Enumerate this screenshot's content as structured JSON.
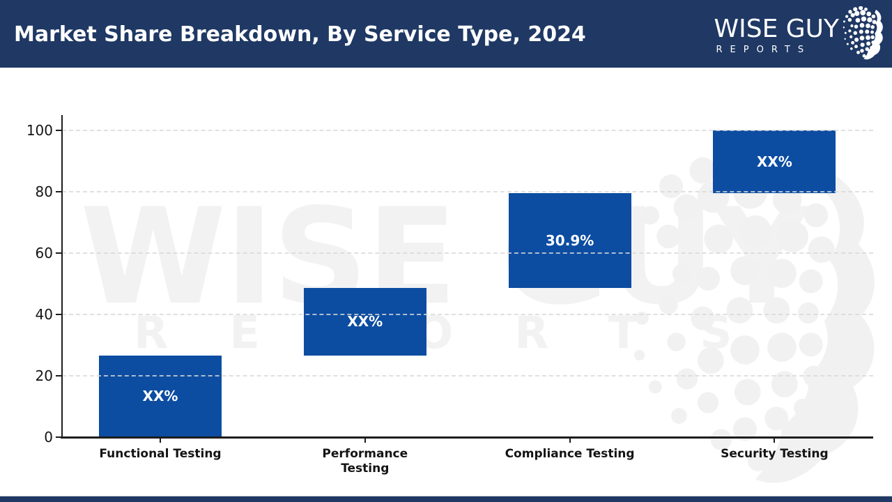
{
  "header": {
    "title": "Market Share Breakdown, By Service Type, 2024",
    "bg_color": "#1f3864",
    "logo": {
      "line1": "WISE GUY",
      "line2": "REPORTS"
    }
  },
  "watermark": {
    "line1": "WISE GUY",
    "line2": "REPORTS"
  },
  "chart_data": {
    "type": "bar",
    "subtype": "waterfall",
    "title": "Market Share Breakdown, By Service Type, 2024",
    "categories": [
      "Functional Testing",
      "Performance Testing",
      "Compliance Testing",
      "Security Testing"
    ],
    "tick_lines": [
      [
        "Functional Testing"
      ],
      [
        "Performance",
        "Testing"
      ],
      [
        "Compliance Testing"
      ],
      [
        "Security Testing"
      ]
    ],
    "series": [
      {
        "name": "Market Share (%)",
        "segments": [
          {
            "category": "Functional Testing",
            "start": 0,
            "end": 26.6,
            "label": "XX%"
          },
          {
            "category": "Performance Testing",
            "start": 26.6,
            "end": 48.5,
            "label": "XX%"
          },
          {
            "category": "Compliance Testing",
            "start": 48.5,
            "end": 79.5,
            "label": "30.9%"
          },
          {
            "category": "Security Testing",
            "start": 79.5,
            "end": 100,
            "label": "XX%"
          }
        ]
      }
    ],
    "ylim": [
      0,
      100
    ],
    "yticks": [
      0,
      20,
      40,
      60,
      80,
      100
    ],
    "grid": "horizontal-dashed",
    "legend": "none",
    "bar_color": "#0c4da2",
    "bar_label_color": "#ffffff",
    "axis_color": "#1d1d1d",
    "grid_color": "#d9d9d9"
  },
  "footer": {
    "bg_color": "#1f3864"
  }
}
